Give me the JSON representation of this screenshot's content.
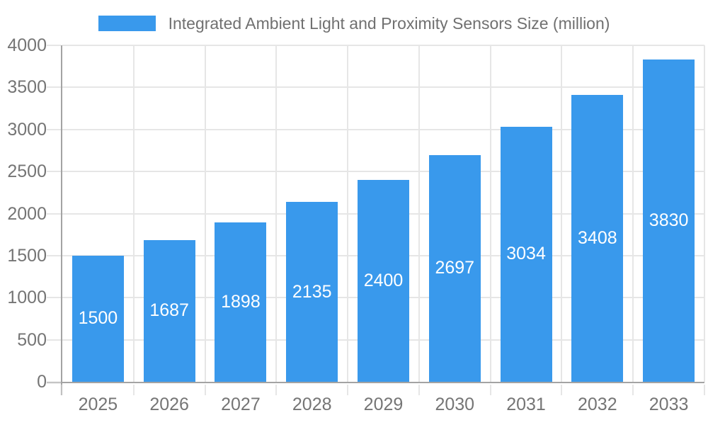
{
  "legend": {
    "label": "Integrated Ambient Light and Proximity Sensors Size (million)",
    "swatch_color": "#3999ec"
  },
  "chart_data": {
    "type": "bar",
    "title": "Integrated Ambient Light and Proximity Sensors Size (million)",
    "series_name": "Integrated Ambient Light and Proximity Sensors Size (million)",
    "categories": [
      "2025",
      "2026",
      "2027",
      "2028",
      "2029",
      "2030",
      "2031",
      "2032",
      "2033"
    ],
    "values": [
      1500,
      1687,
      1898,
      2135,
      2400,
      2697,
      3034,
      3408,
      3830
    ],
    "xlabel": "",
    "ylabel": "",
    "ylim": [
      0,
      4000
    ],
    "yticks": [
      0,
      500,
      1000,
      1500,
      2000,
      2500,
      3000,
      3500,
      4000
    ],
    "grid": true,
    "legend_position": "top",
    "bar_color": "#3999ec",
    "value_label_color": "#ffffff",
    "axis_text_color": "#757575",
    "grid_color": "#e6e6e6",
    "axis_line_color": "#a3a3a3",
    "background_color": "#ffffff"
  }
}
